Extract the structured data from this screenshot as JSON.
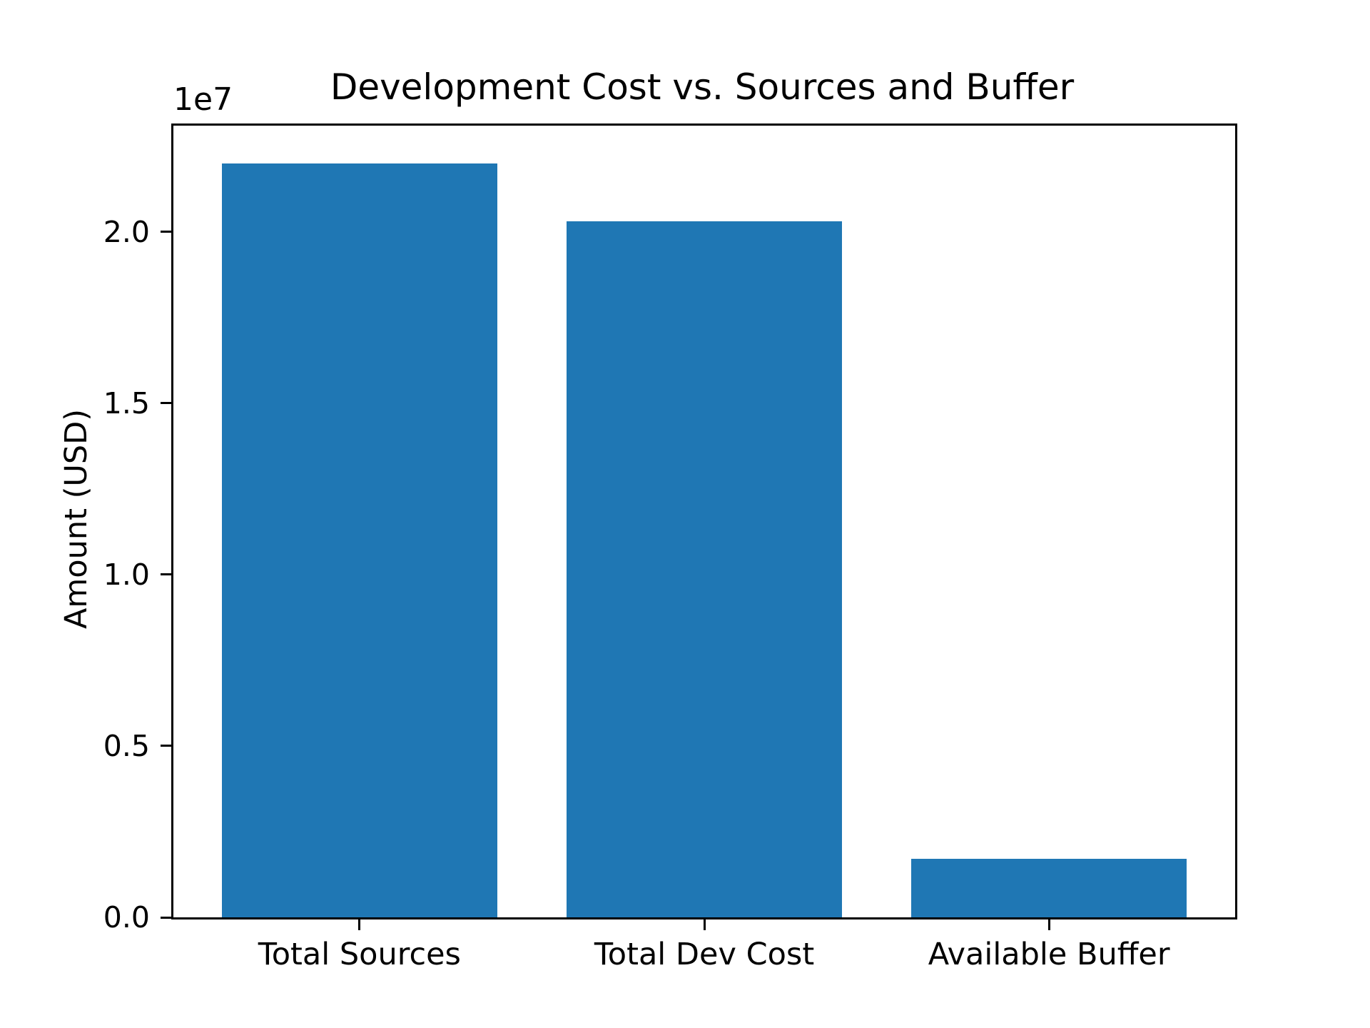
{
  "chart_data": {
    "type": "bar",
    "title": "Development Cost vs. Sources and Buffer",
    "ylabel": "Amount (USD)",
    "xlabel": "",
    "offset_text": "1e7",
    "categories": [
      "Total Sources",
      "Total Dev Cost",
      "Available Buffer"
    ],
    "values": [
      22000000,
      20300000,
      1700000
    ],
    "series": [
      {
        "name": "Amount (USD)",
        "values": [
          22000000,
          20300000,
          1700000
        ]
      }
    ],
    "bar_color": "#1f77b4",
    "axis_color": "#000000",
    "background_color": "#ffffff",
    "ylim": [
      0,
      23100000
    ],
    "xlim": [
      -0.54,
      2.54
    ],
    "bar_width": 0.8,
    "yticks": [
      {
        "value": 0,
        "label": "0.0"
      },
      {
        "value": 5000000,
        "label": "0.5"
      },
      {
        "value": 10000000,
        "label": "1.0"
      },
      {
        "value": 15000000,
        "label": "1.5"
      },
      {
        "value": 20000000,
        "label": "2.0"
      }
    ],
    "grid": false,
    "legend": "none"
  }
}
